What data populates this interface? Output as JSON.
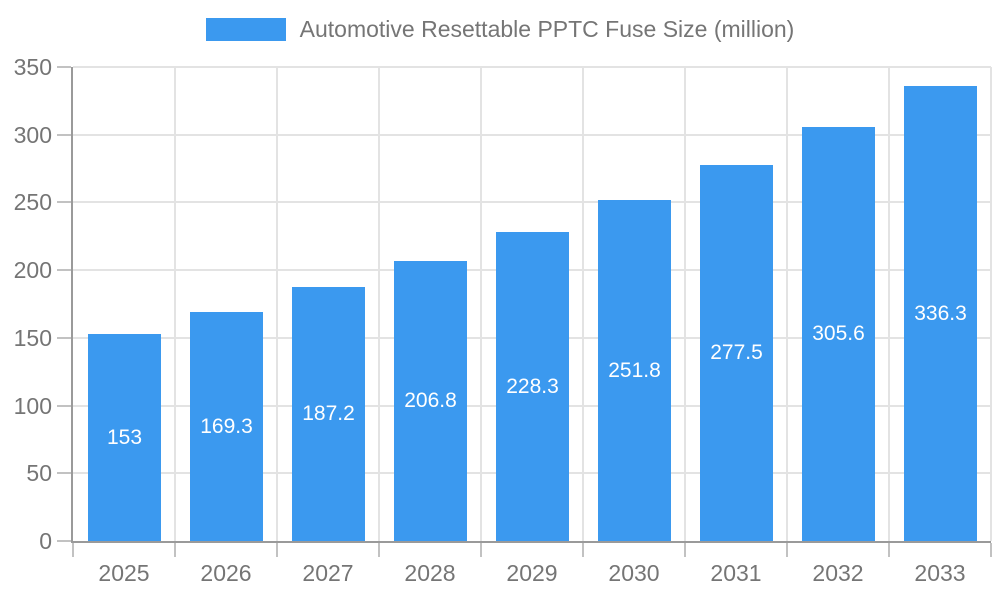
{
  "legend": {
    "label": "Automotive Resettable PPTC Fuse Size (million)"
  },
  "chart_data": {
    "type": "bar",
    "title": "Automotive Resettable PPTC Fuse Size (million)",
    "categories": [
      "2025",
      "2026",
      "2027",
      "2028",
      "2029",
      "2030",
      "2031",
      "2032",
      "2033"
    ],
    "values": [
      153,
      169.3,
      187.2,
      206.8,
      228.3,
      251.8,
      277.5,
      305.6,
      336.3
    ],
    "series": [
      {
        "name": "Automotive Resettable PPTC Fuse Size (million)",
        "values": [
          153,
          169.3,
          187.2,
          206.8,
          228.3,
          251.8,
          277.5,
          305.6,
          336.3
        ]
      }
    ],
    "xlabel": "",
    "ylabel": "",
    "ylim": [
      0,
      350
    ],
    "ytick_step": 50,
    "grid": true,
    "legend_position": "top",
    "colors": {
      "bar": "#3b99ef",
      "bar_label": "#ffffff",
      "axis": "#9a9a9a",
      "grid": "#e3e3e3",
      "tick": "#c2c2c2",
      "text": "#757575"
    }
  }
}
